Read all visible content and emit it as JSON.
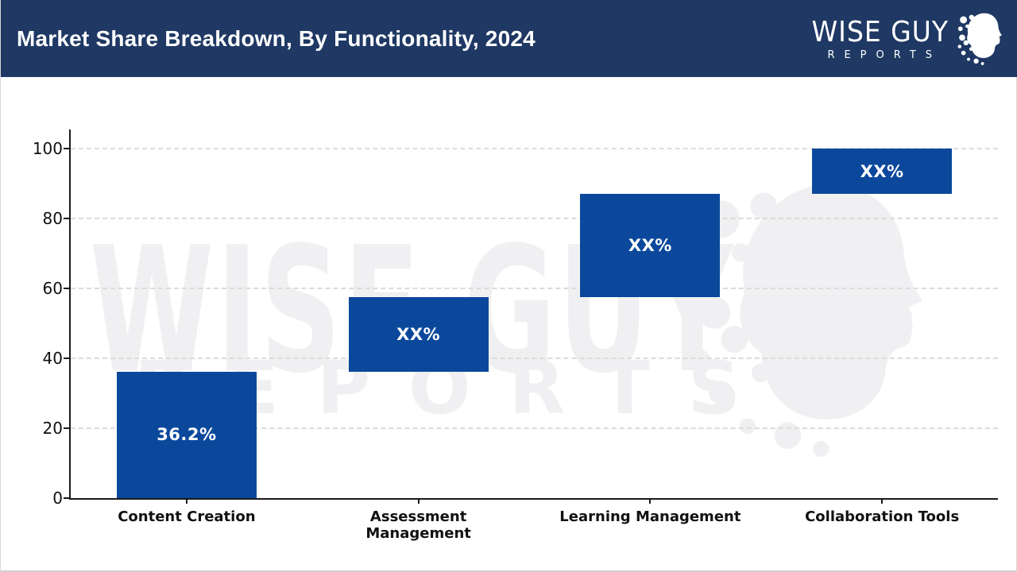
{
  "header": {
    "title": "Market Share Breakdown, By Functionality, 2024",
    "logo": {
      "line1": "WISE GUY",
      "line2": "REPORTS"
    }
  },
  "watermark": {
    "line1": "WISE GUY",
    "line2": "REPORTS"
  },
  "colors": {
    "header_bg": "#1f3864",
    "bar": "#0b489c",
    "grid": "#dbdbdb",
    "axis": "#1a1a1a",
    "watermark": "#f0f0f2",
    "bar_label": "#ffffff"
  },
  "chart_data": {
    "type": "bar",
    "subtype": "waterfall-stacked",
    "title": "Market Share Breakdown, By Functionality, 2024",
    "categories": [
      "Content Creation",
      "Assessment Management",
      "Learning Management",
      "Collaboration Tools"
    ],
    "segments": [
      {
        "category": "Content Creation",
        "start": 0,
        "end": 36.2,
        "value": 36.2,
        "label": "36.2%"
      },
      {
        "category": "Assessment Management",
        "start": 36.2,
        "end": 57.5,
        "value": 21.3,
        "label": "XX%"
      },
      {
        "category": "Learning Management",
        "start": 57.5,
        "end": 87.0,
        "value": 29.5,
        "label": "XX%"
      },
      {
        "category": "Collaboration Tools",
        "start": 87.0,
        "end": 100.0,
        "value": 13.0,
        "label": "XX%"
      }
    ],
    "yticks": [
      0,
      20,
      40,
      60,
      80,
      100
    ],
    "ylim": [
      0,
      105
    ],
    "xlabel": "",
    "ylabel": "",
    "grid": "horizontal-dashed",
    "legend": "none",
    "bar_color": "#0b489c",
    "label_color": "#ffffff"
  }
}
